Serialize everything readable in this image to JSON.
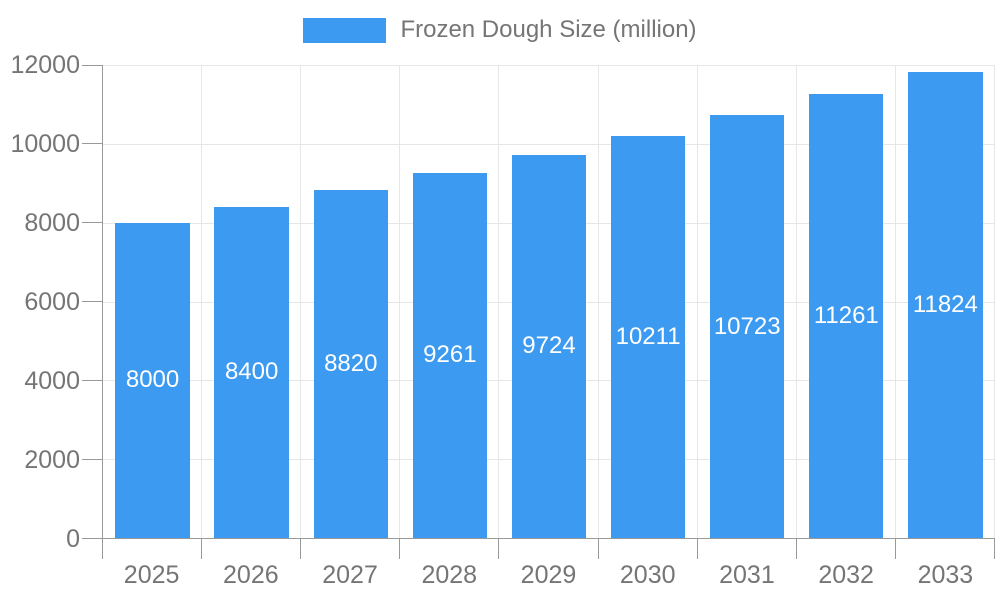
{
  "legend": {
    "items": [
      {
        "label": "Frozen Dough Size (million)",
        "color": "#3c9bf0"
      }
    ]
  },
  "colors": {
    "background": "#ffffff",
    "bar": "#3c9bf0",
    "axis_line": "#999999",
    "tick_mark": "#999999",
    "grid_line": "#e6e6e6",
    "axis_label_text": "#757575",
    "legend_text": "#757575",
    "value_label_text": "#ffffff"
  },
  "chart_data": {
    "type": "bar",
    "title": "",
    "legend_position": "top-center",
    "categories": [
      "2025",
      "2026",
      "2027",
      "2028",
      "2029",
      "2030",
      "2031",
      "2032",
      "2033"
    ],
    "series": [
      {
        "name": "Frozen Dough Size (million)",
        "color": "#3c9bf0",
        "values": [
          8000,
          8400,
          8820,
          9261,
          9724,
          10211,
          10723,
          11261,
          11824
        ]
      }
    ],
    "xlabel": "",
    "ylabel": "",
    "ylim": [
      0,
      12000
    ],
    "ytick_interval": 2000,
    "yticks": [
      0,
      2000,
      4000,
      6000,
      8000,
      10000,
      12000
    ],
    "grid": true,
    "grid_vertical": true,
    "value_labels": {
      "visible": true,
      "position": "inside-center"
    }
  }
}
